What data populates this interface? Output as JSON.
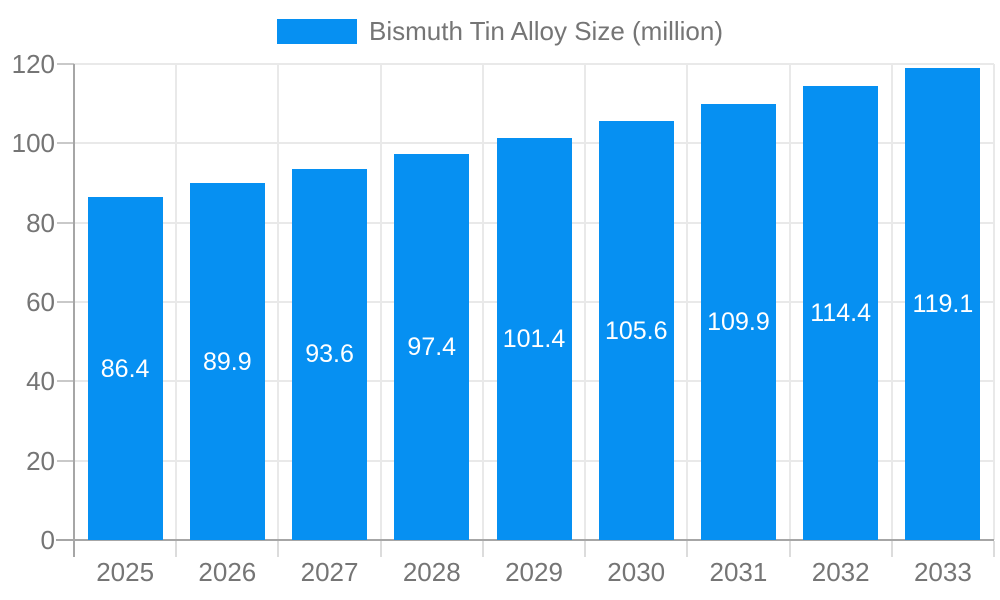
{
  "legend": {
    "label": "Bismuth Tin Alloy Size (million)"
  },
  "colors": {
    "bar": "#0690f2",
    "axis_line": "#a6a6a6",
    "grid_line": "#e9e9e9",
    "tick_line": "#c9c9c9",
    "x_tick_line": "#dcdcdc",
    "tick_label": "#757575",
    "value_label": "#ffffff",
    "legend_text": "#757575",
    "background": "#ffffff"
  },
  "chart_data": {
    "type": "bar",
    "title": "Bismuth Tin Alloy Size (million)",
    "categories": [
      "2025",
      "2026",
      "2027",
      "2028",
      "2029",
      "2030",
      "2031",
      "2032",
      "2033"
    ],
    "series": [
      {
        "name": "Bismuth Tin Alloy Size (million)",
        "values": [
          86.4,
          89.9,
          93.6,
          97.4,
          101.4,
          105.6,
          109.9,
          114.4,
          119.1
        ]
      }
    ],
    "value_labels": [
      "86.4",
      "89.9",
      "93.6",
      "97.4",
      "101.4",
      "105.6",
      "109.9",
      "114.4",
      "119.1"
    ],
    "xlabel": "",
    "ylabel": "",
    "ylim": [
      0,
      120
    ],
    "y_ticks": [
      0,
      20,
      40,
      60,
      80,
      100,
      120
    ],
    "grid": true,
    "legend_position": "top-center",
    "value_label_position": "inside-center"
  }
}
